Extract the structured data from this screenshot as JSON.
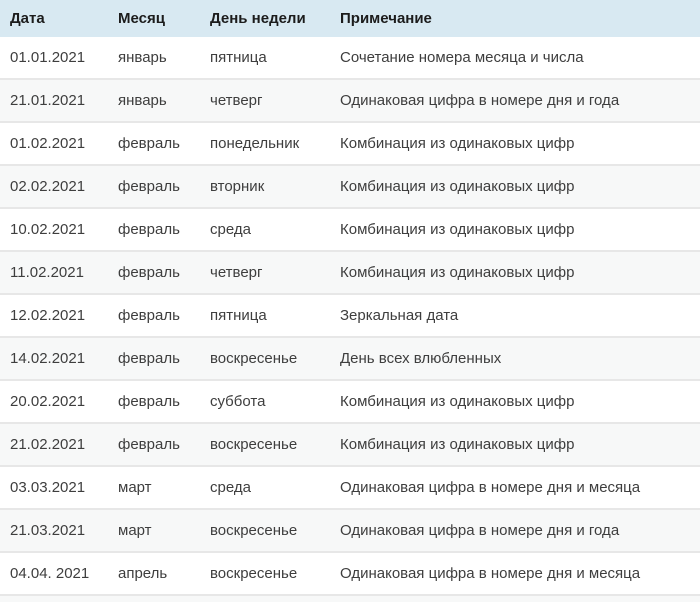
{
  "colors": {
    "header_bg": "#d8e9f2",
    "row_alt_bg": "#f7f8f8",
    "border": "#e7e7e7",
    "header_text": "#1c1c1c",
    "body_text": "#3e3e3e"
  },
  "table": {
    "columns": [
      {
        "key": "date",
        "label": "Дата"
      },
      {
        "key": "month",
        "label": "Месяц"
      },
      {
        "key": "weekday",
        "label": "День недели"
      },
      {
        "key": "note",
        "label": "Примечание"
      }
    ],
    "rows": [
      {
        "date": "01.01.2021",
        "month": "январь",
        "weekday": "пятница",
        "note": "Сочетание номера месяца и числа"
      },
      {
        "date": "21.01.2021",
        "month": "январь",
        "weekday": "четверг",
        "note": "Одинаковая цифра в номере дня и года"
      },
      {
        "date": "01.02.2021",
        "month": "февраль",
        "weekday": "понедельник",
        "note": "Комбинация из одинаковых цифр"
      },
      {
        "date": "02.02.2021",
        "month": "февраль",
        "weekday": "вторник",
        "note": "Комбинация из одинаковых цифр"
      },
      {
        "date": "10.02.2021",
        "month": "февраль",
        "weekday": "среда",
        "note": "Комбинация из одинаковых цифр"
      },
      {
        "date": "11.02.2021",
        "month": "февраль",
        "weekday": "четверг",
        "note": "Комбинация из одинаковых цифр"
      },
      {
        "date": "12.02.2021",
        "month": "февраль",
        "weekday": "пятница",
        "note": "Зеркальная дата"
      },
      {
        "date": "14.02.2021",
        "month": "февраль",
        "weekday": "воскресенье",
        "note": "День всех влюбленных"
      },
      {
        "date": "20.02.2021",
        "month": "февраль",
        "weekday": "суббота",
        "note": "Комбинация из одинаковых цифр"
      },
      {
        "date": "21.02.2021",
        "month": "февраль",
        "weekday": "воскресенье",
        "note": "Комбинация из одинаковых цифр"
      },
      {
        "date": "03.03.2021",
        "month": "март",
        "weekday": "среда",
        "note": "Одинаковая цифра в номере дня и месяца"
      },
      {
        "date": "21.03.2021",
        "month": "март",
        "weekday": "воскресенье",
        "note": "Одинаковая цифра в номере дня и года"
      },
      {
        "date": "04.04. 2021",
        "month": "апрель",
        "weekday": "воскресенье",
        "note": "Одинаковая цифра в номере дня и месяца"
      }
    ]
  }
}
